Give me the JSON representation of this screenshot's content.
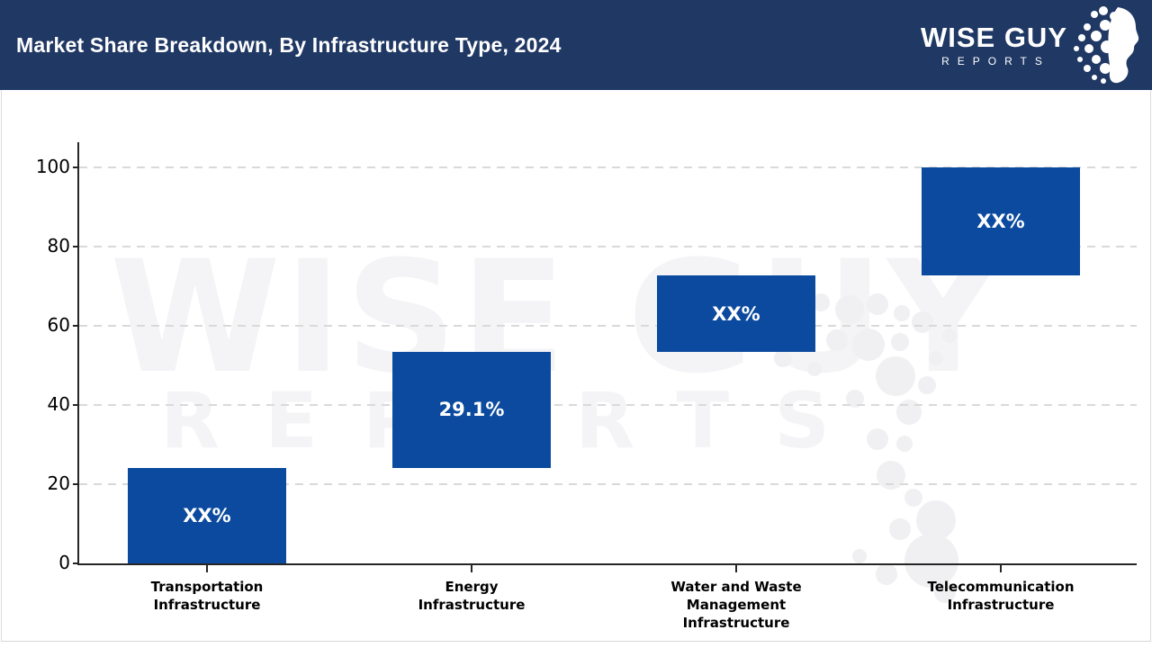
{
  "header": {
    "title": "Market Share Breakdown, By Infrastructure Type, 2024",
    "logo": {
      "line1": "WISE GUY",
      "line2": "REPORTS"
    },
    "bg_color": "#203864"
  },
  "watermark": {
    "line1": "WISE GUY",
    "line2": "REPORTS"
  },
  "chart_data": {
    "type": "bar",
    "subtype": "waterfall",
    "title": "Market Share Breakdown, By Infrastructure Type, 2024",
    "xlabel": "",
    "ylabel": "",
    "ylim": [
      0,
      100
    ],
    "yticks": [
      0,
      20,
      40,
      60,
      80,
      100
    ],
    "grid": "horizontal-dashed",
    "legend": "none",
    "bar_color": "#0b4a9e",
    "categories": [
      "Transportation Infrastructure",
      "Energy Infrastructure",
      "Water and Waste Management Infrastructure",
      "Telecommunication Infrastructure"
    ],
    "category_label_lines": [
      [
        "Transportation",
        "Infrastructure"
      ],
      [
        "Energy",
        "Infrastructure"
      ],
      [
        "Water and Waste",
        "Management",
        "Infrastructure"
      ],
      [
        "Telecommunication",
        "Infrastructure"
      ]
    ],
    "segments": [
      {
        "category": "Transportation Infrastructure",
        "start": 0,
        "end": 24.2,
        "label": "XX%"
      },
      {
        "category": "Energy Infrastructure",
        "start": 24.2,
        "end": 53.3,
        "label": "29.1%"
      },
      {
        "category": "Water and Waste Management Infrastructure",
        "start": 53.3,
        "end": 72.8,
        "label": "XX%"
      },
      {
        "category": "Telecommunication Infrastructure",
        "start": 72.8,
        "end": 100,
        "label": "XX%"
      }
    ]
  },
  "colors": {
    "header_bg": "#203864",
    "bar": "#0b4a9e",
    "gridline": "#d9d9d9",
    "axis": "#262626",
    "watermark": "#f4f4f6"
  }
}
